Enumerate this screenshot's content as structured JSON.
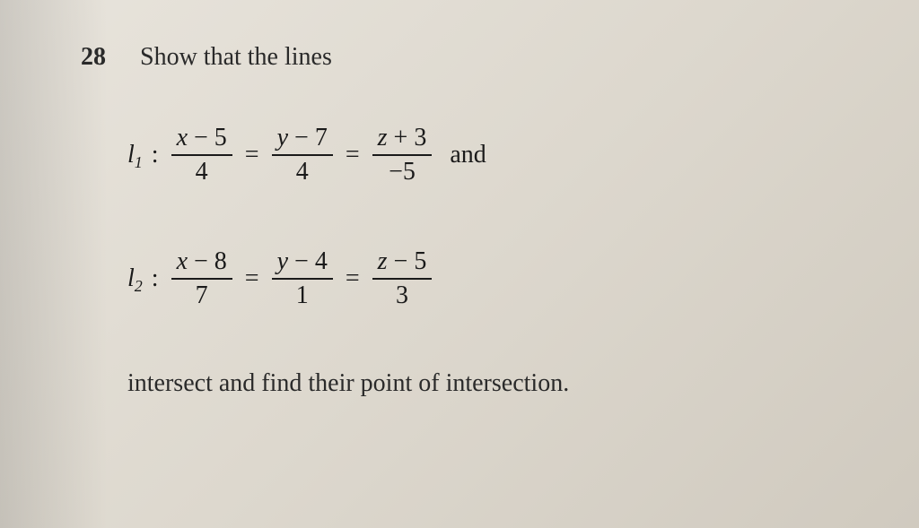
{
  "problem": {
    "number": "28",
    "prompt": "Show that the lines"
  },
  "line1": {
    "label_letter": "l",
    "label_sub": "1",
    "frac1_num_var": "x",
    "frac1_num_op": " − 5",
    "frac1_den": "4",
    "frac2_num_var": "y",
    "frac2_num_op": " − 7",
    "frac2_den": "4",
    "frac3_num_var": "z",
    "frac3_num_op": " + 3",
    "frac3_den": "−5",
    "and": "and"
  },
  "line2": {
    "label_letter": "l",
    "label_sub": "2",
    "frac1_num_var": "x",
    "frac1_num_op": " − 8",
    "frac1_den": "7",
    "frac2_num_var": "y",
    "frac2_num_op": " − 4",
    "frac2_den": "1",
    "frac3_num_var": "z",
    "frac3_num_op": " − 5",
    "frac3_den": "3"
  },
  "conclusion": "intersect and find their point of intersection.",
  "symbols": {
    "eq": "=",
    "colon": ":"
  },
  "style": {
    "fontsize_main": 28,
    "fontsize_sub": 18,
    "text_color": "#1a1a1a",
    "bg_gradient_start": "#e8e4dc",
    "bg_gradient_end": "#d0cabf"
  }
}
